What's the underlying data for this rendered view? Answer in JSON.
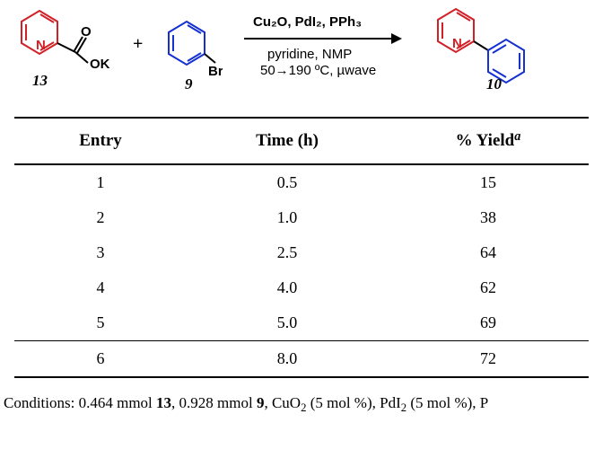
{
  "scheme": {
    "colors": {
      "hetero_red": "#d22027",
      "aryl_blue": "#1531d1",
      "black": "#000000"
    },
    "plus": "+",
    "conditions_top": "Cu₂O, PdI₂, PPh₃",
    "conditions_bottom_l1": "pyridine, NMP",
    "conditions_bottom_l2": "50→190 ºC, µwave",
    "label_13": "13",
    "label_9": "9",
    "label_10": "10"
  },
  "table": {
    "headers": {
      "entry": "Entry",
      "time": "Time (h)",
      "yield": "% Yield",
      "yield_sup": "a"
    },
    "col_widths_pct": [
      30,
      35,
      35
    ],
    "rows": [
      {
        "entry": "1",
        "time": "0.5",
        "yield": "15"
      },
      {
        "entry": "2",
        "time": "1.0",
        "yield": "38"
      },
      {
        "entry": "3",
        "time": "2.5",
        "yield": "64"
      },
      {
        "entry": "4",
        "time": "4.0",
        "yield": "62"
      },
      {
        "entry": "5",
        "time": "5.0",
        "yield": "69"
      },
      {
        "entry": "6",
        "time": "8.0",
        "yield": "72"
      }
    ],
    "separator_before_row_index": 5
  },
  "footnote": {
    "text_prefix": "Conditions: 0.464 mmol ",
    "b13": "13",
    "mid1": ", 0.928 mmol ",
    "b9": "9",
    "mid2": ", CuO",
    "sub2a": "2",
    "mid3": " (5 mol %), PdI",
    "sub2b": "2",
    "mid4": " (5 mol %), P"
  },
  "styling": {
    "background_color": "#ffffff",
    "font_family": "Times New Roman",
    "header_fontsize": 19,
    "cell_fontsize": 18,
    "footnote_fontsize": 17,
    "rule_color": "#000000",
    "rule_thick": 2,
    "rule_thin": 1.5
  }
}
